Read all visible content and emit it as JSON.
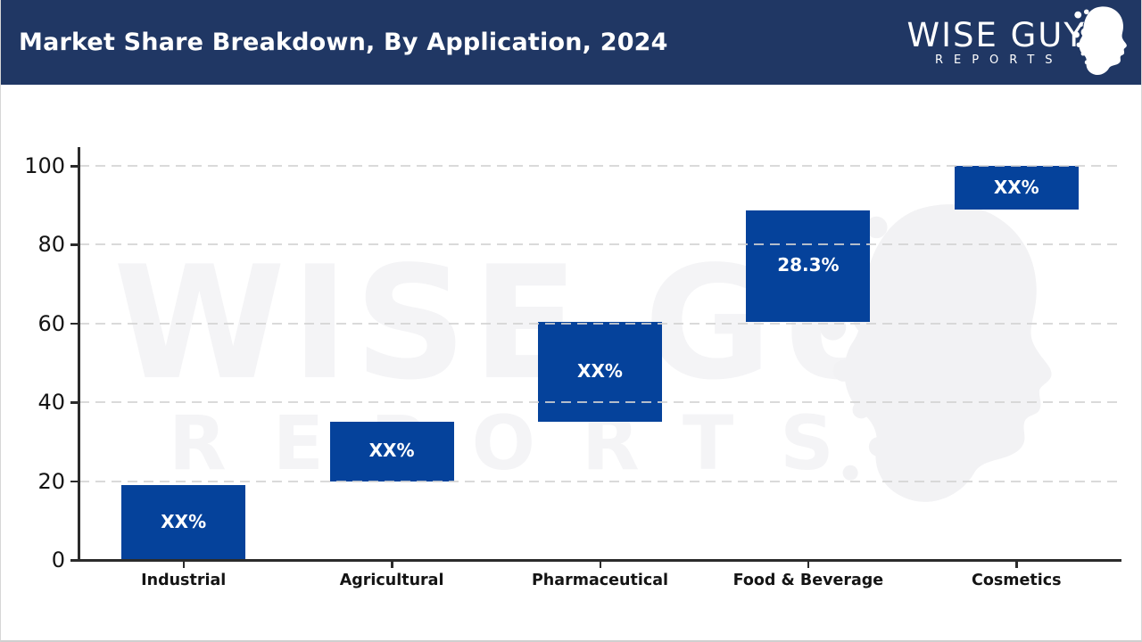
{
  "header": {
    "title": "Market Share Breakdown, By Application, 2024",
    "logo": {
      "line1": "WISE GUY",
      "line2": "REPORTS"
    }
  },
  "watermark": {
    "line1": "WISE GUY",
    "line2": "REPORTS"
  },
  "colors": {
    "header_bg": "#203764",
    "bar": "#05429b",
    "grid": "#d3d3d3",
    "axis": "#2b2b2b",
    "bar_label_text": "#ffffff",
    "watermark": "#f4f4f6"
  },
  "chart_data": {
    "type": "bar",
    "subtype": "floating-waterfall",
    "title": "Market Share Breakdown, By Application, 2024",
    "categories": [
      "Industrial",
      "Agricultural",
      "Pharmaceutical",
      "Food & Beverage",
      "Cosmetics"
    ],
    "segments": [
      {
        "category": "Industrial",
        "start": 0,
        "end": 19,
        "label": "XX%"
      },
      {
        "category": "Agricultural",
        "start": 20,
        "end": 35,
        "label": "XX%"
      },
      {
        "category": "Pharmaceutical",
        "start": 35,
        "end": 60.5,
        "label": "XX%"
      },
      {
        "category": "Food & Beverage",
        "start": 60.5,
        "end": 88.8,
        "label": "28.3%"
      },
      {
        "category": "Cosmetics",
        "start": 88.9,
        "end": 100,
        "label": "XX%"
      }
    ],
    "yticks": [
      0,
      20,
      40,
      60,
      80,
      100
    ],
    "ylim": [
      0,
      105
    ],
    "xlabel": "",
    "ylabel": "",
    "grid": "dashed horizontal, drawn over bars",
    "legend": "none"
  }
}
